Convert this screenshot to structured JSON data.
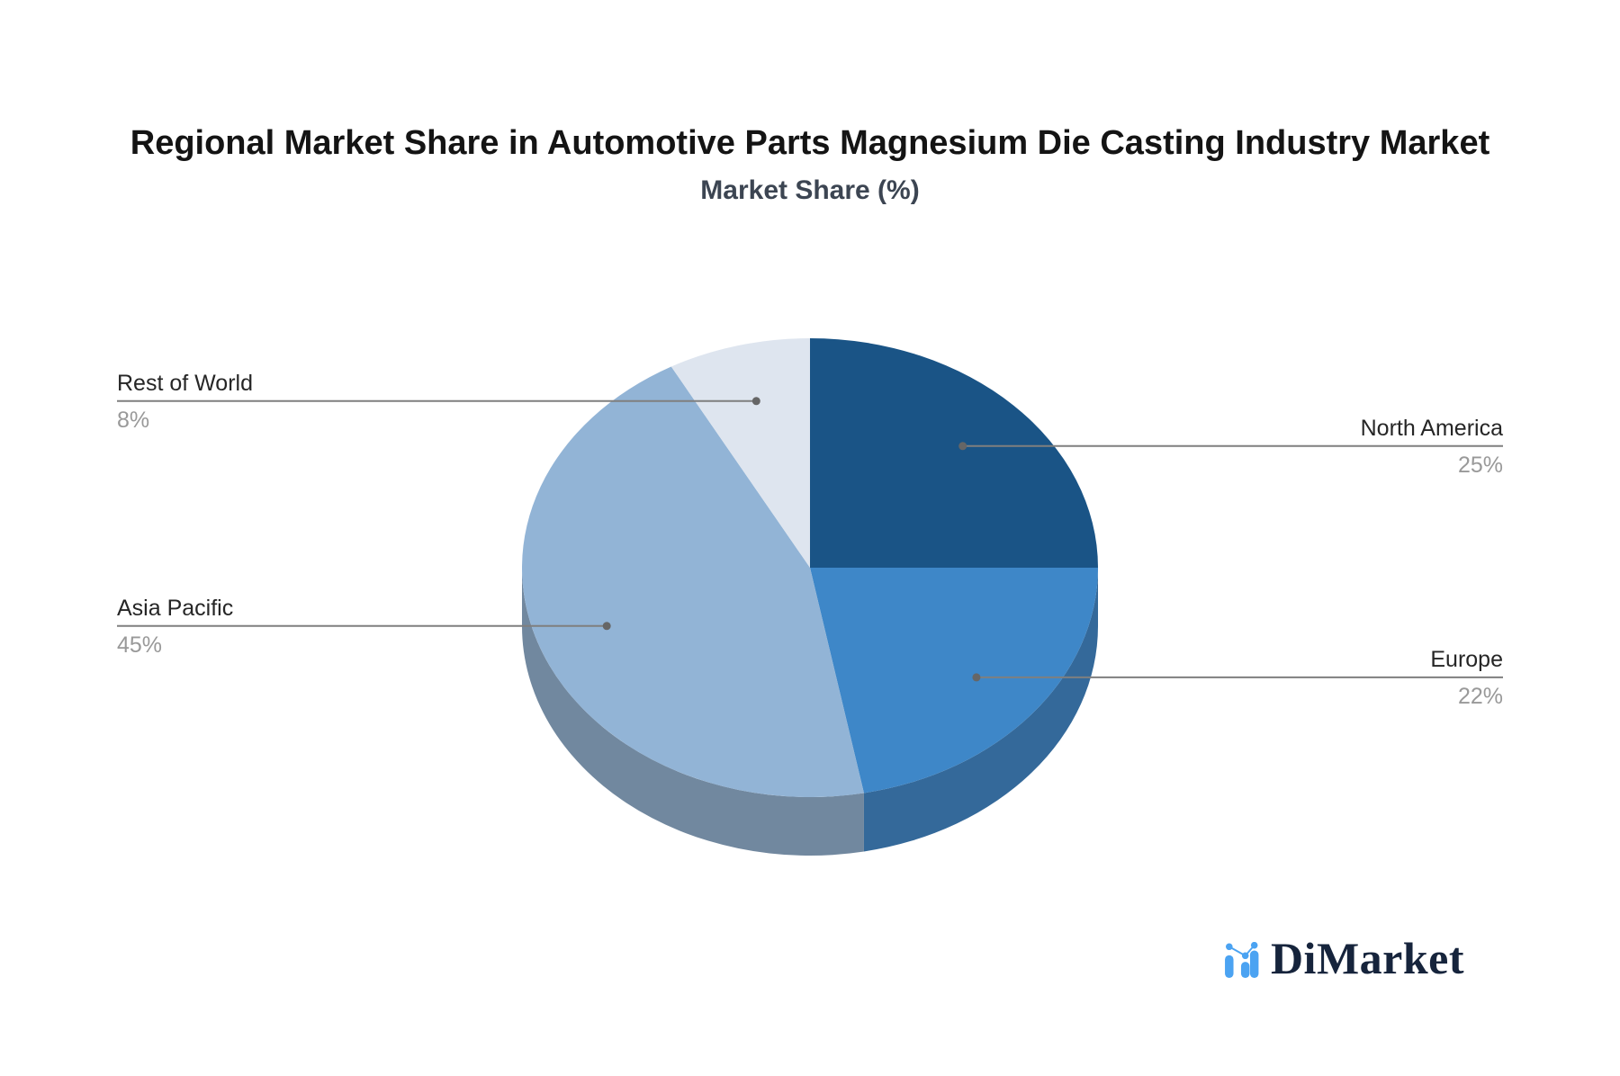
{
  "header": {
    "title": "Regional Market Share in Automotive Parts Magnesium Die Casting Industry Market",
    "subtitle": "Market Share (%)"
  },
  "chart_data": {
    "type": "pie",
    "title": "Regional Market Share in Automotive Parts Magnesium Die Casting Industry Market",
    "subtitle": "Market Share (%)",
    "unit": "%",
    "style": "3d-pie",
    "direction": "clockwise",
    "start_angle": "12-o-clock",
    "legend_position": "callout-labels",
    "slices": [
      {
        "label": "North America",
        "value": 25,
        "pct_label": "25%",
        "color": "#1A5486",
        "wall_color": "#174A76",
        "label_side": "right"
      },
      {
        "label": "Europe",
        "value": 22,
        "pct_label": "22%",
        "color": "#3E87C8",
        "wall_color": "#34699A",
        "label_side": "right"
      },
      {
        "label": "Asia Pacific",
        "value": 45,
        "pct_label": "45%",
        "color": "#92B4D6",
        "wall_color": "#71889F",
        "label_side": "left"
      },
      {
        "label": "Rest of World",
        "value": 8,
        "pct_label": "8%",
        "color": "#DEE5EF",
        "wall_color": "#ACB8C8",
        "label_side": "left"
      }
    ],
    "colors": {
      "callout_line": "#7F7F7F",
      "callout_dot": "#666666",
      "label_text": "#262626",
      "pct_text": "#999999"
    }
  },
  "logo": {
    "text": "DiMarket",
    "icon": "bar-chart-icon",
    "icon_color": "#4BA3F2",
    "text_color": "#16243C"
  }
}
